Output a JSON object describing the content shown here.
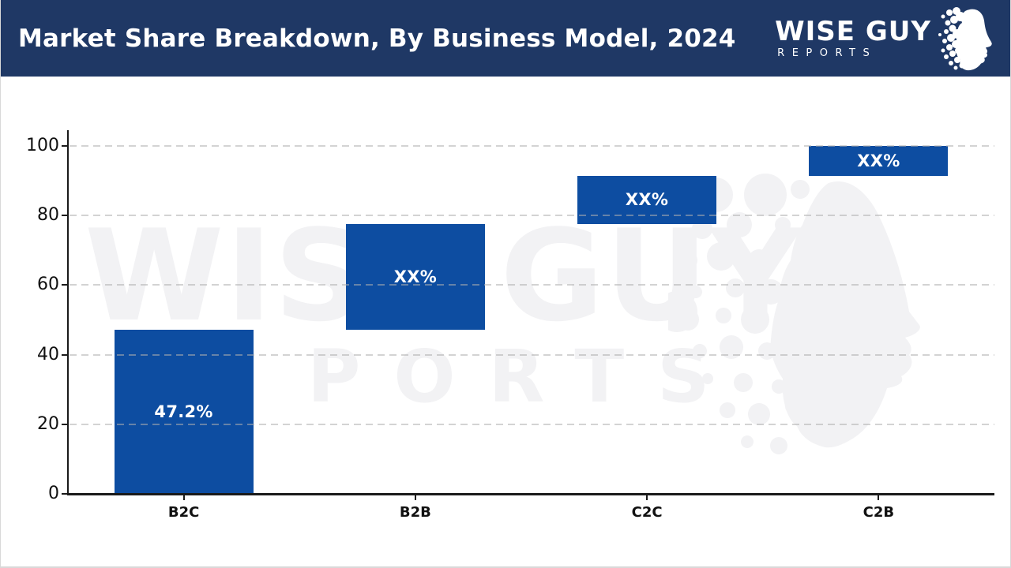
{
  "header": {
    "title": "Market Share Breakdown, By Business Model, 2024",
    "logo": {
      "line1": "WISE GUY",
      "line2": "REPORTS"
    }
  },
  "watermark": {
    "line1": "WISE GUY",
    "line2": "PORTS"
  },
  "colors": {
    "header_bg": "#1f3865",
    "bar": "#0d4da1",
    "bar_label": "#ffffff",
    "axis": "#1a1a1a",
    "grid": "rgba(175,175,175,0.55)",
    "watermark": "#f2f2f4",
    "tick_text": "#111111"
  },
  "chart_data": {
    "type": "bar",
    "subtype": "waterfall",
    "title": "Market Share Breakdown, By Business Model, 2024",
    "categories": [
      "B2C",
      "B2B",
      "C2C",
      "C2B"
    ],
    "segments": [
      {
        "category": "B2C",
        "start": 0,
        "end": 47.2,
        "label": "47.2%"
      },
      {
        "category": "B2B",
        "start": 47.2,
        "end": 77.5,
        "label": "XX%"
      },
      {
        "category": "C2C",
        "start": 77.5,
        "end": 91.5,
        "label": "XX%"
      },
      {
        "category": "C2B",
        "start": 91.5,
        "end": 100,
        "label": "XX%"
      }
    ],
    "xlabel": "",
    "ylabel": "",
    "ylim": [
      0,
      104.5
    ],
    "yticks": [
      0,
      20,
      40,
      60,
      80,
      100
    ],
    "grid": "horizontal-dashed",
    "legend": "none"
  }
}
